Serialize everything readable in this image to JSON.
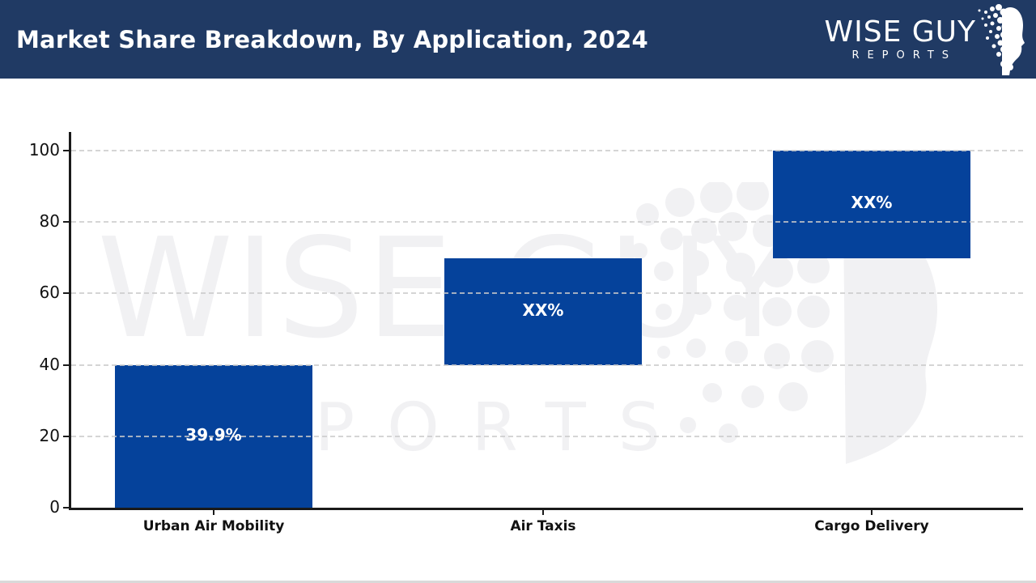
{
  "header": {
    "title": "Market Share Breakdown, By Application, 2024",
    "background_color": "#203a64",
    "logo": {
      "brand_line1": "WISE GUY",
      "brand_line2": "REPORTS",
      "mark": "dotted-face-profile"
    }
  },
  "watermark": {
    "line1": "WISE GUY",
    "line2": "REPORTS"
  },
  "chart_data": {
    "type": "bar",
    "subtype": "floating-segment-bars",
    "title": "Market Share Breakdown, By Application, 2024",
    "categories": [
      "Urban Air Mobility",
      "Air Taxis",
      "Cargo Delivery"
    ],
    "segments": [
      {
        "category": "Urban Air Mobility",
        "start": 0,
        "end": 39.9,
        "label": "39.9%"
      },
      {
        "category": "Air Taxis",
        "start": 39.9,
        "end": 69.9,
        "label": "XX%"
      },
      {
        "category": "Cargo Delivery",
        "start": 69.9,
        "end": 100,
        "label": "XX%"
      }
    ],
    "xlabel": "",
    "ylabel": "",
    "ylim": [
      0,
      100
    ],
    "y_ticks": [
      0,
      20,
      40,
      60,
      80,
      100
    ],
    "grid": "horizontal-dashed",
    "legend": "none",
    "bar_color": "#05429b",
    "bar_label_color": "#ffffff"
  },
  "footer": {
    "divider_color": "#d9d9d9"
  }
}
